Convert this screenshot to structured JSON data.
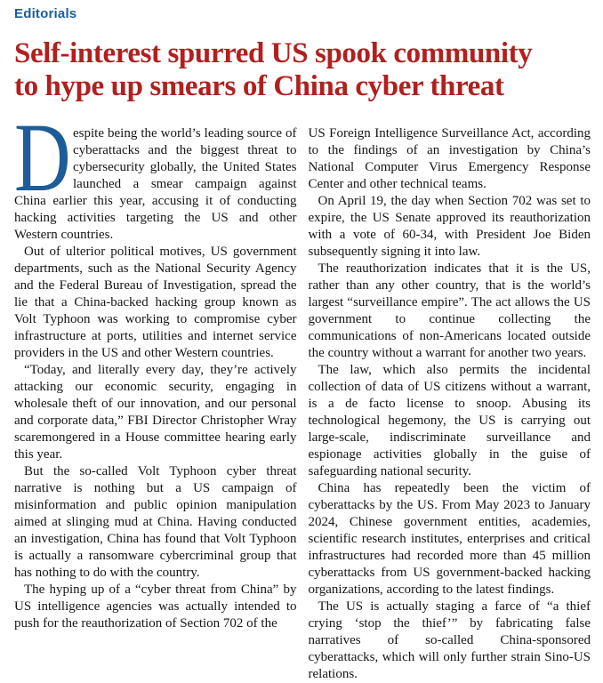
{
  "colors": {
    "background": "#ffffff",
    "kicker_blue": "#1c5c9a",
    "headline_red": "#b1201e",
    "drop_cap_blue": "#1d5c99",
    "body_text": "#161616"
  },
  "kicker": {
    "label": "Editorials"
  },
  "headline": {
    "lines": [
      "Self-interest spurred US spook community",
      "to hype up smears of China cyber threat"
    ]
  },
  "article": {
    "drop_cap": "D",
    "left_column": [
      "espite being the world’s leading source of cyberattacks and the biggest threat to cybersecurity globally, the United States launched a smear campaign against China earlier this year, accusing it of conducting hacking activities targeting the US and other Western countries.",
      "Out of ulterior political motives, US government departments, such as the National Security Agency and the Federal Bureau of Investigation, spread the lie that a China-backed hacking group known as Volt Typhoon was working to compromise cyber infrastructure at ports, utilities and internet service providers in the US and other Western countries.",
      "“Today, and literally every day, they’re actively attacking our economic security, engaging in wholesale theft of our innovation, and our personal and corporate data,” FBI Director Christopher Wray scaremongered in a House committee hearing early this year.",
      "But the so-called Volt Typhoon cyber threat narrative is nothing but a US campaign of misinformation and public opinion manipulation aimed at slinging mud at China. Having conducted an investigation, China has found that Volt Typhoon is actually a ransomware cybercriminal group that has nothing to do with the country.",
      "The hyping up of a “cyber threat from China” by US intelligence agencies was actually intended to push for the reauthorization of Section 702 of the"
    ],
    "right_column": [
      "US Foreign Intelligence Surveillance Act, according to the findings of an investigation by China’s National Computer Virus Emergency Response Center and other technical teams.",
      "On April 19, the day when Section 702 was set to expire, the US Senate approved its reauthorization with a vote of 60-34, with President Joe Biden subsequently signing it into law.",
      "The reauthorization indicates that it is the US, rather than any other country, that is the world’s largest “surveillance empire”. The act allows the US government to continue collecting the communications of non-Americans located outside the country without a warrant for another two years.",
      "The law, which also permits the incidental collection of data of US citizens without a warrant, is a de facto license to snoop. Abusing its technological hegemony, the US is carrying out large-scale, indiscriminate surveillance and espionage activities globally in the guise of safeguarding national security.",
      "China has repeatedly been the victim of cyberattacks by the US. From May 2023 to January 2024, Chinese government entities, academies, scientific research institutes, enterprises and critical infrastructures had recorded more than 45 million cyberattacks from US government-backed hacking organizations, according to the latest findings.",
      "The US is actually staging a farce of “a thief crying ‘stop the thief’” by fabricating false narratives of so-called China-sponsored cyberattacks, which will only further strain Sino-US relations."
    ]
  }
}
